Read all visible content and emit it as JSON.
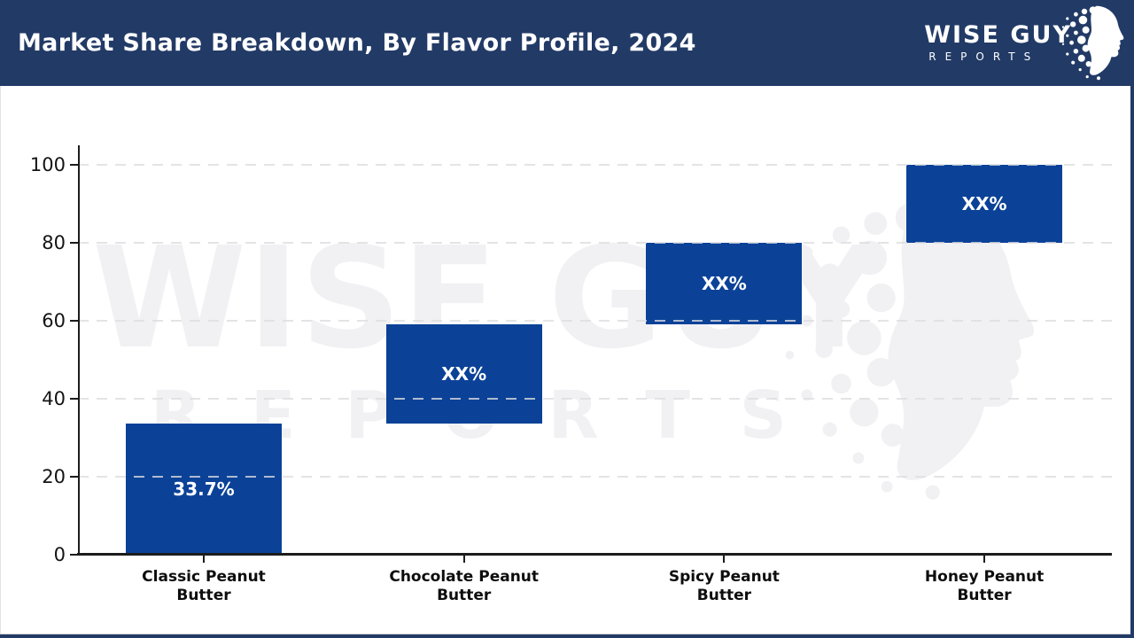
{
  "header": {
    "title": "Market Share Breakdown, By Flavor Profile, 2024",
    "logo": {
      "wordmark": "WISE GUY",
      "subtext": "REPORTS",
      "head_icon": "dotted-head-profile"
    }
  },
  "watermark": {
    "wordmark": "WISE GUY",
    "subtext": "REPORTS",
    "head_icon": "dotted-head-profile"
  },
  "chart_data": {
    "type": "bar",
    "variant": "waterfall",
    "title": "Market Share Breakdown, By Flavor Profile, 2024",
    "categories": [
      "Classic Peanut Butter",
      "Chocolate Peanut Butter",
      "Spicy Peanut Butter",
      "Honey Peanut Butter"
    ],
    "series": [
      {
        "name": "Market Share (%)",
        "segments": [
          {
            "category": "Classic Peanut Butter",
            "start": 0,
            "end": 33.7,
            "label": "33.7%"
          },
          {
            "category": "Chocolate Peanut Butter",
            "start": 33.7,
            "end": 59,
            "label": "XX%"
          },
          {
            "category": "Spicy Peanut Butter",
            "start": 59,
            "end": 80,
            "label": "XX%"
          },
          {
            "category": "Honey Peanut Butter",
            "start": 80,
            "end": 100,
            "label": "XX%"
          }
        ]
      }
    ],
    "xlabel": "",
    "ylabel": "",
    "yticks": [
      0,
      20,
      40,
      60,
      80,
      100
    ],
    "ylim": [
      0,
      105
    ],
    "grid": {
      "horizontal": true,
      "style": "dashed",
      "drawn_over_bars": true
    },
    "legend": "none",
    "bar_color": "#0b4298",
    "bar_label_color": "#ffffff"
  },
  "colors": {
    "header_bg": "#223a66",
    "accent_bar": "#0b4298",
    "watermark": "#f1f1f4",
    "gridline": "#dddddf",
    "axis": "#1c1c1c",
    "text_dark": "#0d0d0d",
    "text_light": "#ffffff"
  }
}
